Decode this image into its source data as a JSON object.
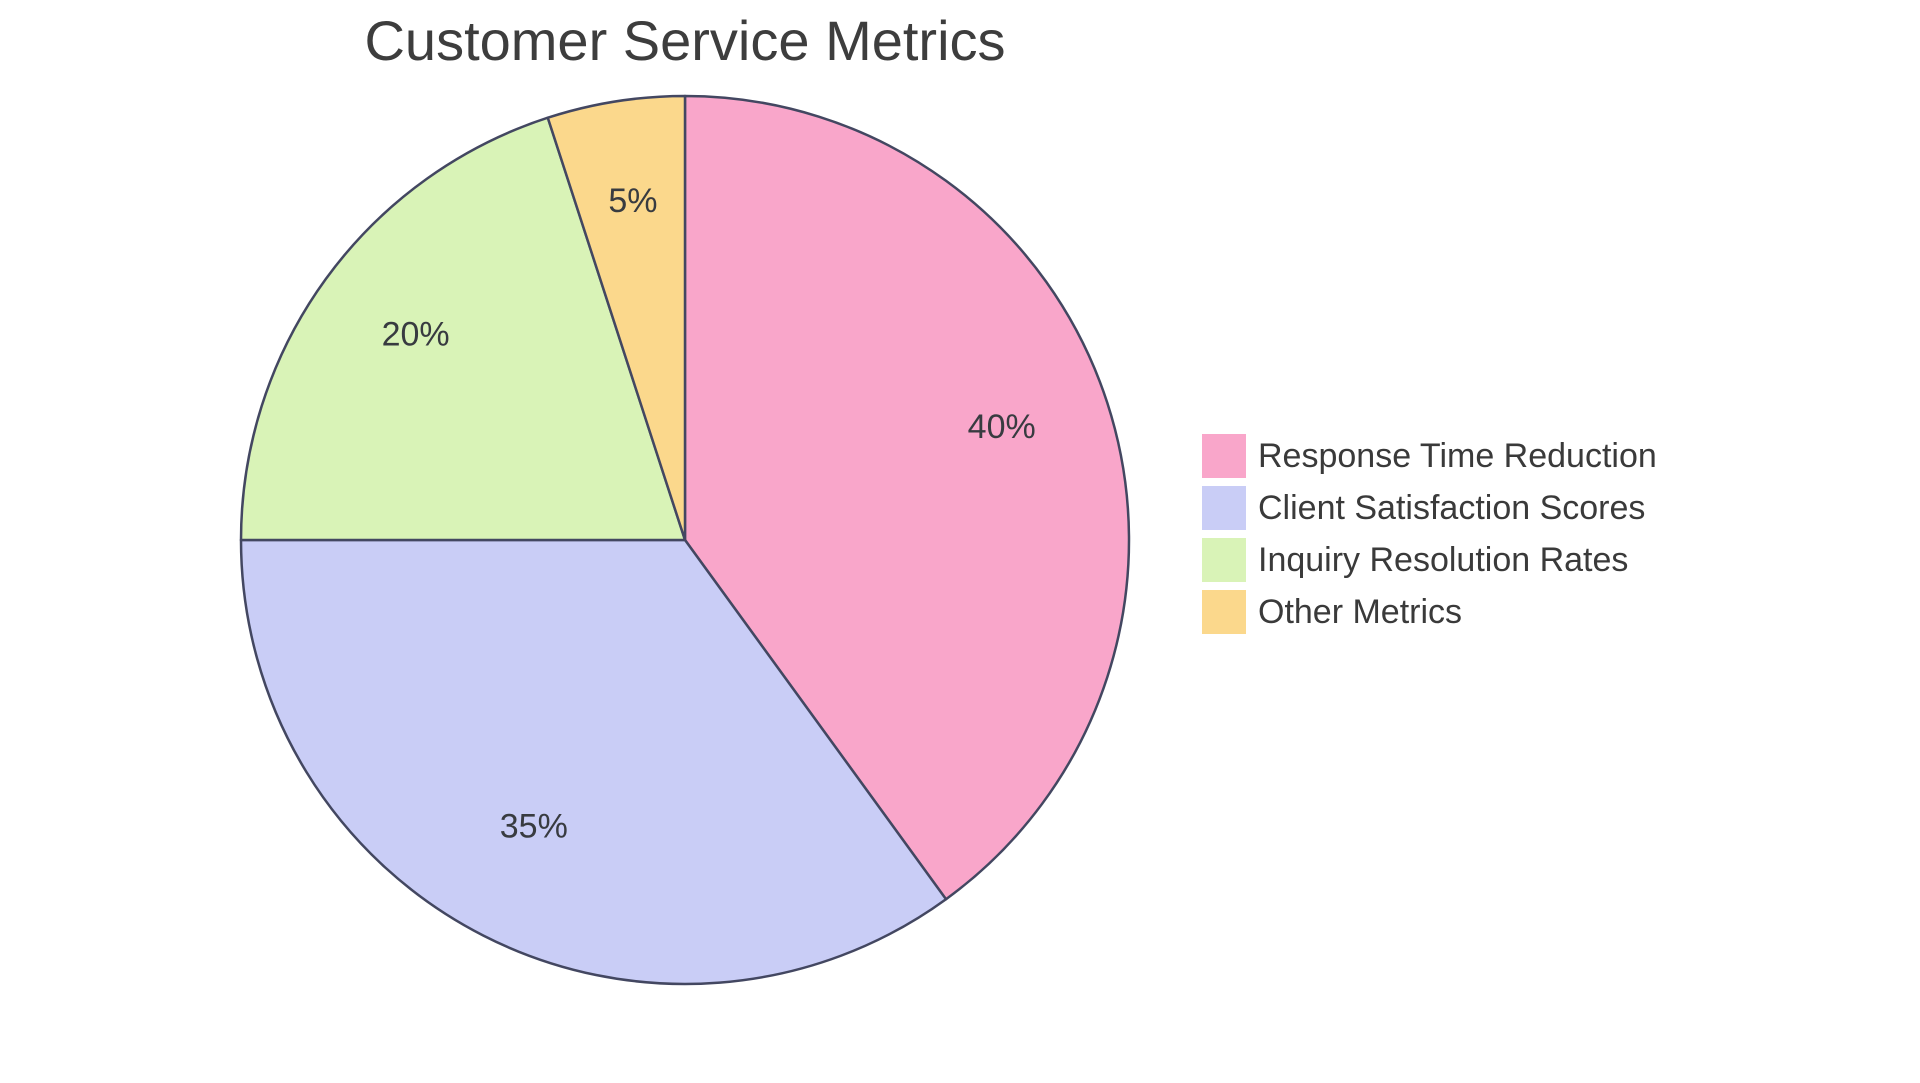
{
  "chart_data": {
    "type": "pie",
    "title": "Customer Service Metrics",
    "labels": [
      "Response Time Reduction",
      "Client Satisfaction Scores",
      "Inquiry Resolution Rates",
      "Other Metrics"
    ],
    "values": [
      40,
      35,
      20,
      5
    ],
    "value_labels": [
      "40%",
      "35%",
      "20%",
      "5%"
    ],
    "colors": [
      "#F9A6CA",
      "#C9CDF6",
      "#D9F3B7",
      "#FBD88C"
    ],
    "start_angle": "top",
    "direction": "clockwise",
    "legend_position": "right",
    "style": {
      "background": "#ffffff",
      "slice_stroke": "#434761",
      "slice_stroke_width": 2.5,
      "pct_label_color": "#383b40",
      "title_color": "#3d3d3d",
      "legend_text_color": "#3a3a3a"
    }
  }
}
